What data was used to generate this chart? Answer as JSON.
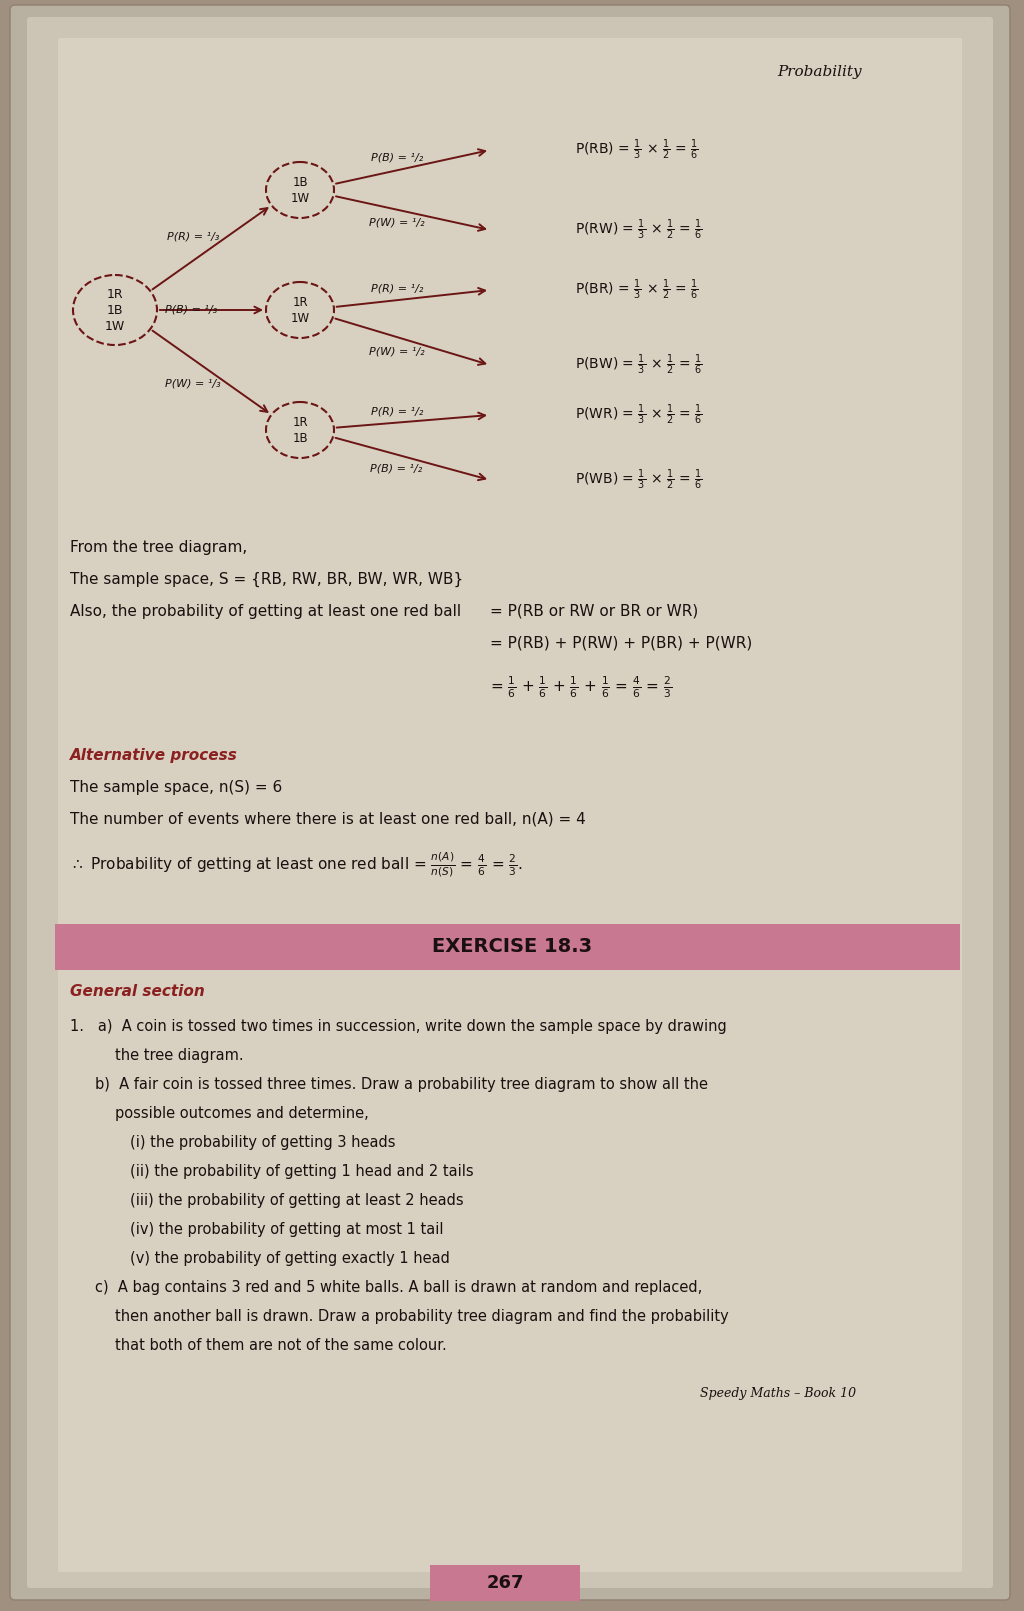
{
  "title": "Probability",
  "bg_color": "#a09080",
  "page_color": "#c8c0b0",
  "text_color": "#1a1010",
  "arrow_color": "#6b1515",
  "circle_color": "#6b1515",
  "alt_color": "#8b2020",
  "exercise_bg": "#c87890",
  "exercise_text": "#1a1010",
  "footer_italic": "Speedy Maths – Book 10",
  "page_number": "267",
  "exercise_title": "EXERCISE 18.3",
  "general_section": "General section",
  "root_label": "1R\n1B\n1W",
  "l1_labels": [
    "1B\n1W",
    "1R\n1W",
    "1R\n1B"
  ],
  "l1_probs": [
    "P(R) = ¹/₃",
    "P(B) = ¹/₃",
    "P(W) = ¹/₃"
  ],
  "l2_probs": [
    [
      "P(B) = ¹/₂",
      "P(W) = ¹/₂"
    ],
    [
      "P(R) = ¹/₂",
      "P(W) = ¹/₂"
    ],
    [
      "P(R) = ¹/₂",
      "P(B) = ¹/₂"
    ]
  ],
  "outcomes": [
    "P(RB) = 1/3 × 1/2 = 1/6",
    "P(RW) = 1/3 × 1/2 = 1/6",
    "P(BR) = 1/3 × 1/2 = 1/6",
    "P(BW) = 1/3 × 1/2 = 1/6",
    "P(WR) = 1/3 × 1/2 = 1/6",
    "P(WB) = 1/3 × 1/2 = 1/6"
  ]
}
